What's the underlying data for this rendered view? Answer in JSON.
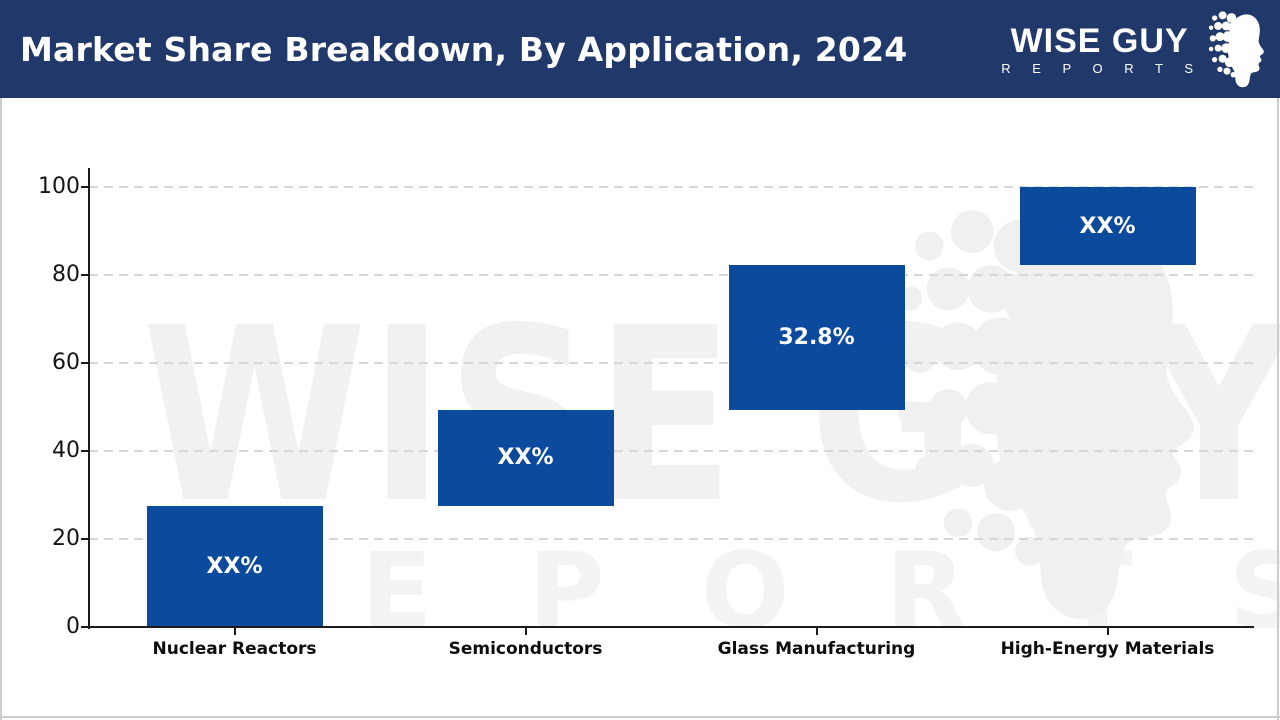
{
  "header": {
    "title": "Market Share Breakdown, By Application, 2024",
    "logo": {
      "line1": "WISE GUY",
      "line2": "R E P O R T S"
    },
    "bg_color": "#21386b"
  },
  "watermark": {
    "line1": "WISE GUY",
    "line2": "R E P O R T S"
  },
  "chart_data": {
    "type": "bar",
    "subtype": "waterfall",
    "title": "Market Share Breakdown, By Application, 2024",
    "categories": [
      "Nuclear Reactors",
      "Semiconductors",
      "Glass Manufacturing",
      "High-Energy Materials"
    ],
    "series": [
      {
        "name": "Nuclear Reactors",
        "start": 0,
        "end": 27.5,
        "label": "XX%"
      },
      {
        "name": "Semiconductors",
        "start": 27.5,
        "end": 49.4,
        "label": "XX%"
      },
      {
        "name": "Glass Manufacturing",
        "start": 49.4,
        "end": 82.2,
        "label": "32.8%"
      },
      {
        "name": "High-Energy Materials",
        "start": 82.2,
        "end": 100,
        "label": "XX%"
      }
    ],
    "ylim": [
      0,
      100
    ],
    "yticks": [
      0,
      20,
      40,
      60,
      80,
      100
    ],
    "xlabel": "",
    "ylabel": "",
    "grid": "horizontal-dashed",
    "legend": "none",
    "bar_color": "#0c4a9d",
    "label_color": "#ffffff"
  }
}
